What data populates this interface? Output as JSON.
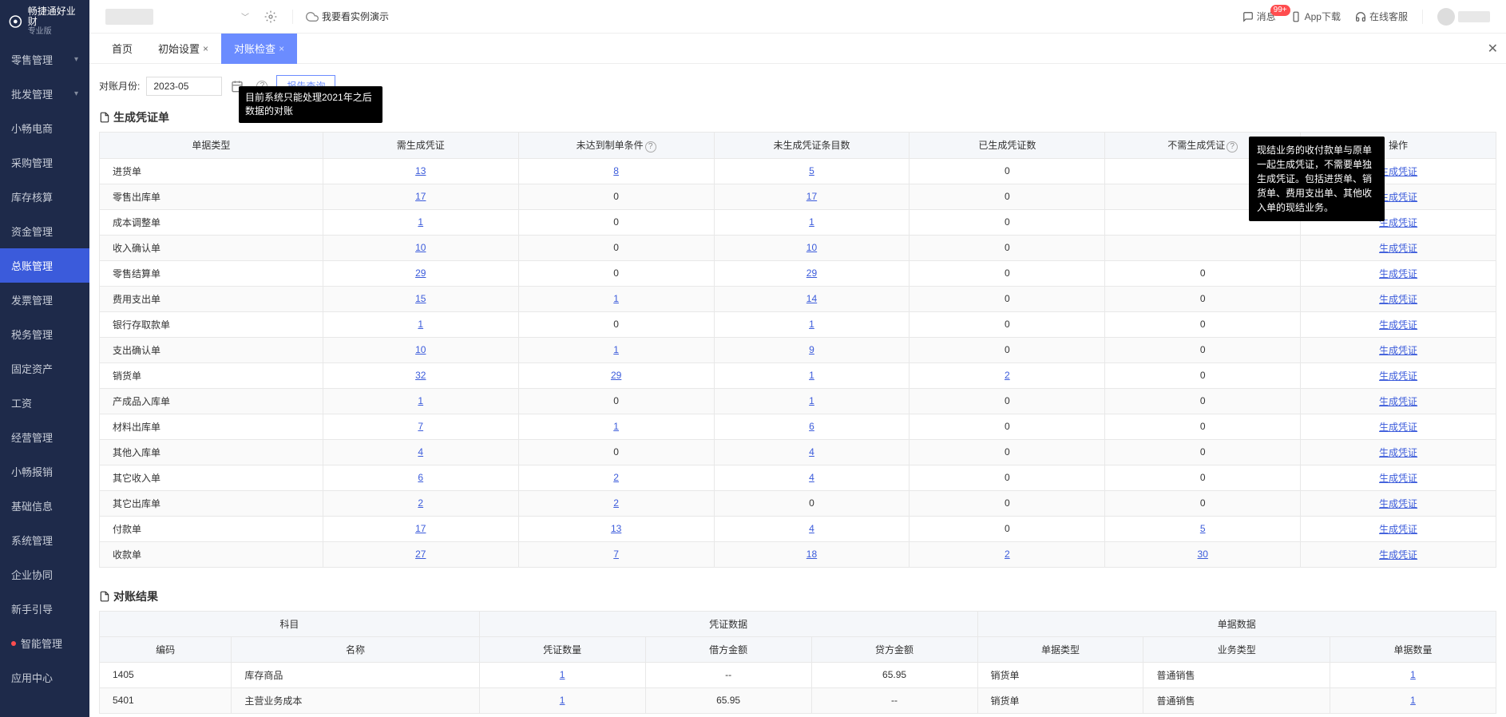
{
  "brand": {
    "name": "畅捷通好业财",
    "edition": "专业版"
  },
  "sidebar": {
    "items": [
      {
        "label": "零售管理",
        "caret": true
      },
      {
        "label": "批发管理",
        "caret": true
      },
      {
        "label": "小畅电商"
      },
      {
        "label": "采购管理"
      },
      {
        "label": "库存核算"
      },
      {
        "label": "资金管理"
      },
      {
        "label": "总账管理",
        "active": true
      },
      {
        "label": "发票管理"
      },
      {
        "label": "税务管理"
      },
      {
        "label": "固定资产"
      },
      {
        "label": "工资"
      },
      {
        "label": "经营管理"
      },
      {
        "label": "小畅报销"
      },
      {
        "label": "基础信息"
      },
      {
        "label": "系统管理"
      },
      {
        "label": "企业协同"
      },
      {
        "label": "新手引导"
      },
      {
        "label": "智能管理",
        "dot": true
      },
      {
        "label": "应用中心"
      }
    ]
  },
  "topbar": {
    "demo": "我要看实例演示",
    "msg": "消息",
    "msg_badge": "99+",
    "app": "App下载",
    "service": "在线客服"
  },
  "tabs": [
    {
      "label": "首页"
    },
    {
      "label": "初始设置",
      "closable": true
    },
    {
      "label": "对账检查",
      "closable": true,
      "active": true
    }
  ],
  "toolbar": {
    "month_label": "对账月份:",
    "month_value": "2023-05",
    "report_btn": "报告查询",
    "tip_date": "目前系统只能处理2021年之后数据的对账"
  },
  "section1": {
    "title": "生成凭证单",
    "columns": [
      "单据类型",
      "需生成凭证",
      "未达到制单条件",
      "未生成凭证条目数",
      "已生成凭证数",
      "不需生成凭证",
      "操作"
    ],
    "col3_help": true,
    "col5_help": true,
    "action_label": "生成凭证",
    "hover_tip": "现结业务的收付款单与原单一起生成凭证，不需要单独生成凭证。包括进货单、销货单、费用支出单、其他收入单的现结业务。",
    "rows": [
      {
        "name": "进货单",
        "need": "13",
        "cond": "8",
        "notgen": "5",
        "gen": "0",
        "noneed": "",
        "need_link": true,
        "cond_link": true,
        "notgen_link": true
      },
      {
        "name": "零售出库单",
        "need": "17",
        "cond": "0",
        "notgen": "17",
        "gen": "0",
        "noneed": "",
        "need_link": true,
        "notgen_link": true
      },
      {
        "name": "成本调整单",
        "need": "1",
        "cond": "0",
        "notgen": "1",
        "gen": "0",
        "noneed": "",
        "need_link": true,
        "notgen_link": true
      },
      {
        "name": "收入确认单",
        "need": "10",
        "cond": "0",
        "notgen": "10",
        "gen": "0",
        "noneed": "",
        "need_link": true,
        "notgen_link": true
      },
      {
        "name": "零售结算单",
        "need": "29",
        "cond": "0",
        "notgen": "29",
        "gen": "0",
        "noneed": "0",
        "need_link": true,
        "notgen_link": true
      },
      {
        "name": "费用支出单",
        "need": "15",
        "cond": "1",
        "notgen": "14",
        "gen": "0",
        "noneed": "0",
        "need_link": true,
        "cond_link": true,
        "notgen_link": true
      },
      {
        "name": "银行存取款单",
        "need": "1",
        "cond": "0",
        "notgen": "1",
        "gen": "0",
        "noneed": "0",
        "need_link": true,
        "notgen_link": true
      },
      {
        "name": "支出确认单",
        "need": "10",
        "cond": "1",
        "notgen": "9",
        "gen": "0",
        "noneed": "0",
        "need_link": true,
        "cond_link": true,
        "notgen_link": true
      },
      {
        "name": "销货单",
        "need": "32",
        "cond": "29",
        "notgen": "1",
        "gen": "2",
        "noneed": "0",
        "need_link": true,
        "cond_link": true,
        "notgen_link": true,
        "gen_link": true
      },
      {
        "name": "产成品入库单",
        "need": "1",
        "cond": "0",
        "notgen": "1",
        "gen": "0",
        "noneed": "0",
        "need_link": true,
        "notgen_link": true
      },
      {
        "name": "材料出库单",
        "need": "7",
        "cond": "1",
        "notgen": "6",
        "gen": "0",
        "noneed": "0",
        "need_link": true,
        "cond_link": true,
        "notgen_link": true
      },
      {
        "name": "其他入库单",
        "need": "4",
        "cond": "0",
        "notgen": "4",
        "gen": "0",
        "noneed": "0",
        "need_link": true,
        "notgen_link": true
      },
      {
        "name": "其它收入单",
        "need": "6",
        "cond": "2",
        "notgen": "4",
        "gen": "0",
        "noneed": "0",
        "need_link": true,
        "cond_link": true,
        "notgen_link": true
      },
      {
        "name": "其它出库单",
        "need": "2",
        "cond": "2",
        "notgen": "0",
        "gen": "0",
        "noneed": "0",
        "need_link": true,
        "cond_link": true
      },
      {
        "name": "付款单",
        "need": "17",
        "cond": "13",
        "notgen": "4",
        "gen": "0",
        "noneed": "5",
        "need_link": true,
        "cond_link": true,
        "notgen_link": true,
        "noneed_link": true
      },
      {
        "name": "收款单",
        "need": "27",
        "cond": "7",
        "notgen": "18",
        "gen": "2",
        "noneed": "30",
        "need_link": true,
        "cond_link": true,
        "notgen_link": true,
        "gen_link": true,
        "noneed_link": true
      }
    ]
  },
  "section2": {
    "title": "对账结果",
    "header_groups": [
      {
        "label": "科目",
        "span": 2
      },
      {
        "label": "凭证数据",
        "span": 3
      },
      {
        "label": "单据数据",
        "span": 3
      }
    ],
    "columns": [
      "编码",
      "名称",
      "凭证数量",
      "借方金额",
      "贷方金额",
      "单据类型",
      "业务类型",
      "单据数量"
    ],
    "rows": [
      {
        "code": "1405",
        "name": "库存商品",
        "vcount": "1",
        "debit": "--",
        "credit": "65.95",
        "doctype": "销货单",
        "biztype": "普通销售",
        "dcount": "1"
      },
      {
        "code": "5401",
        "name": "主营业务成本",
        "vcount": "1",
        "debit": "65.95",
        "credit": "--",
        "doctype": "销货单",
        "biztype": "普通销售",
        "dcount": "1"
      }
    ]
  },
  "colors": {
    "sidebar_bg": "#1e2a4a",
    "active_bg": "#3b5bdb",
    "tab_active": "#6b8cff",
    "link": "#3b5bdb",
    "badge": "#ff4d4f"
  }
}
